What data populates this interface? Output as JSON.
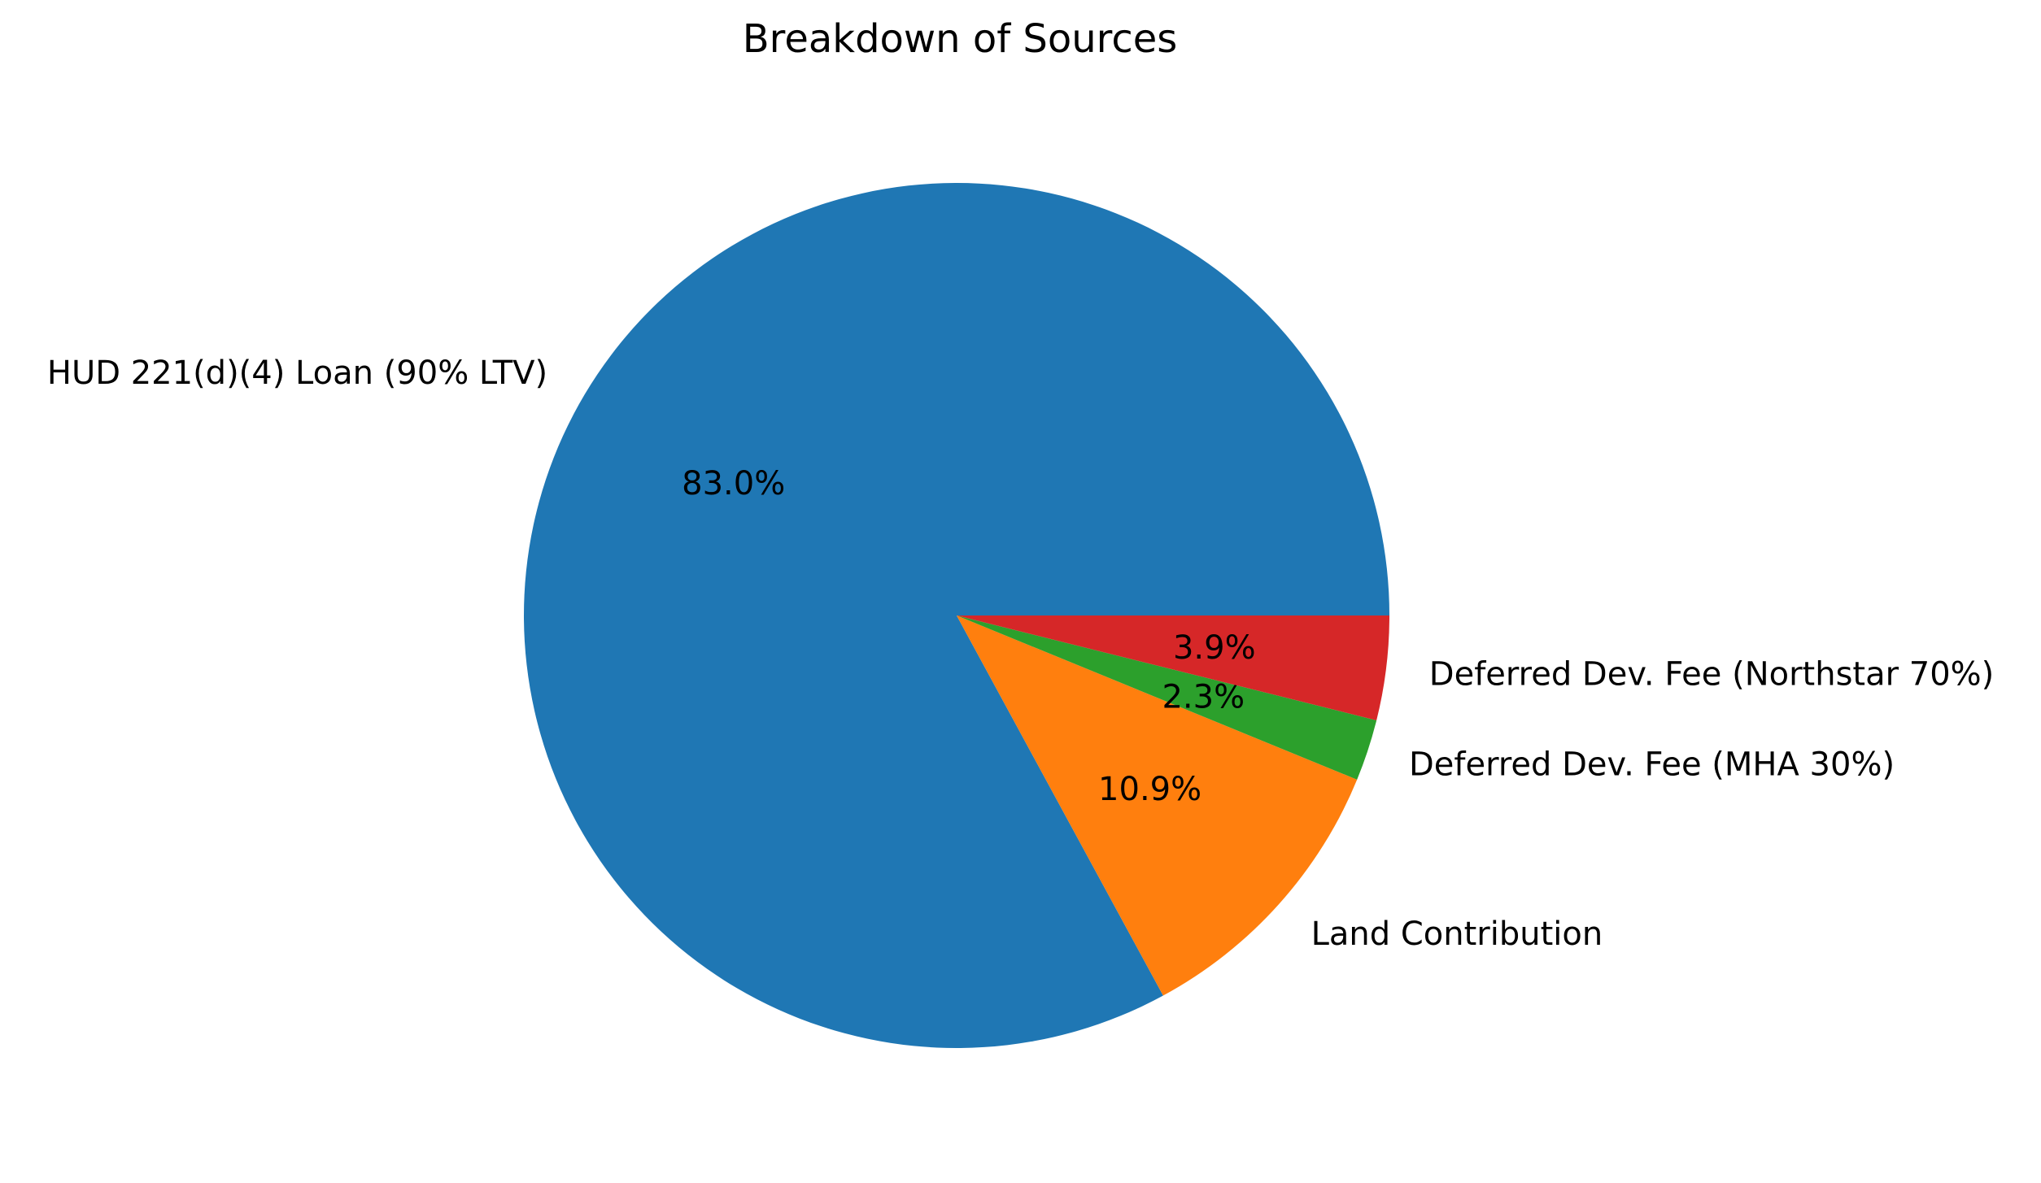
{
  "title": "Breakdown of Sources",
  "chart_data": {
    "type": "pie",
    "title": "Breakdown of Sources",
    "start_angle_deg": 0,
    "direction": "counterclockwise",
    "label_distance": 1.1,
    "pct_distance": 0.6,
    "text_color": "#000000",
    "background": "#ffffff",
    "slices": [
      {
        "label": "HUD 221(d)(4) Loan (90% LTV)",
        "value": 83.0,
        "pct_label": "83.0%",
        "color": "#1f77b4"
      },
      {
        "label": "Land Contribution",
        "value": 10.9,
        "pct_label": "10.9%",
        "color": "#ff7f0e"
      },
      {
        "label": "Deferred Dev. Fee (MHA 30%)",
        "value": 2.3,
        "pct_label": "2.3%",
        "color": "#2ca02c"
      },
      {
        "label": "Deferred Dev. Fee (Northstar 70%)",
        "value": 3.9,
        "pct_label": "3.9%",
        "color": "#d62728"
      }
    ]
  }
}
